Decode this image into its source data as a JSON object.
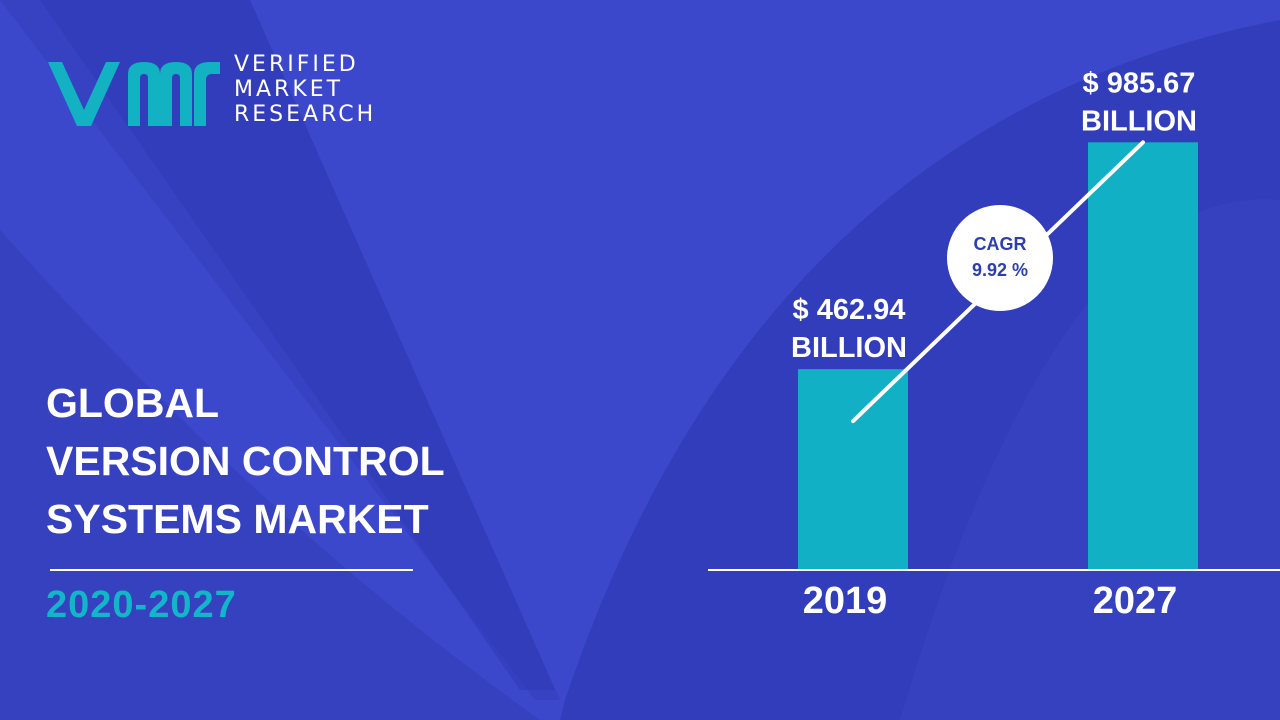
{
  "logo": {
    "line1": "VERIFIED",
    "line2": "MARKET",
    "line3": "RESEARCH"
  },
  "report": {
    "title_lines": [
      "GLOBAL",
      "VERSION CONTROL",
      "SYSTEMS MARKET"
    ],
    "period": "2020-2027"
  },
  "colors": {
    "background": "#3c48cc",
    "bar": "#12b0c4",
    "accent": "#12b6c8",
    "text": "#ffffff",
    "cagr_text": "#2c3fb0"
  },
  "chart_data": {
    "type": "bar",
    "categories": [
      "2019",
      "2027"
    ],
    "values": [
      462.94,
      985.67
    ],
    "value_labels": [
      [
        "$ 462.94",
        "BILLION"
      ],
      [
        "$ 985.67",
        "BILLION"
      ]
    ],
    "unit": "BILLION",
    "cagr_label": "CAGR",
    "cagr_value": "9.92 %",
    "trend_line": true,
    "grid": false,
    "legend": false
  }
}
